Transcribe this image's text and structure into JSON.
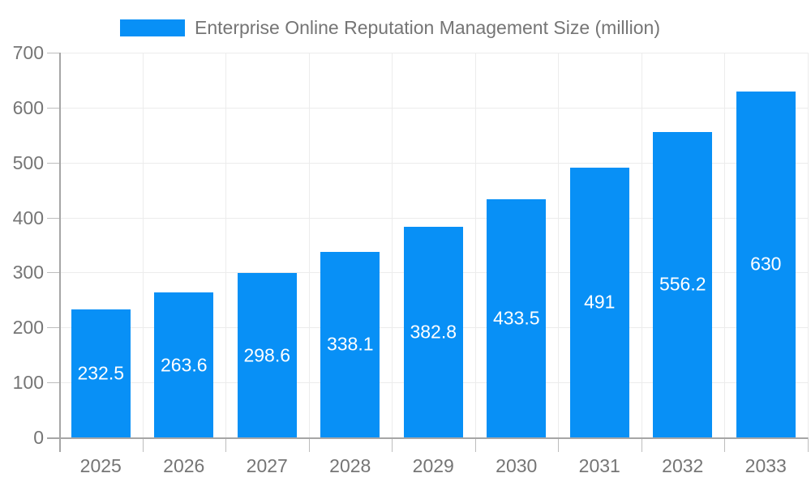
{
  "chart_data": {
    "type": "bar",
    "title": "Enterprise Online Reputation Management Size (million)",
    "categories": [
      "2025",
      "2026",
      "2027",
      "2028",
      "2029",
      "2030",
      "2031",
      "2032",
      "2033"
    ],
    "values": [
      232.5,
      263.6,
      298.6,
      338.1,
      382.8,
      433.5,
      491,
      556.2,
      630
    ],
    "value_labels": [
      "232.5",
      "263.6",
      "298.6",
      "338.1",
      "382.8",
      "433.5",
      "491",
      "556.2",
      "630"
    ],
    "xlabel": "",
    "ylabel": "",
    "ylim": [
      0,
      700
    ],
    "yticks": [
      0,
      100,
      200,
      300,
      400,
      500,
      600,
      700
    ],
    "grid": true,
    "legend_position": "top",
    "colors": {
      "bar": "#0890f6",
      "value_label": "#ffffff",
      "axis_text": "#757575",
      "title_text": "#757575",
      "gridline": "#ececec",
      "axis_line": "#a6a6a6",
      "tick": "#bdbdbd"
    }
  }
}
